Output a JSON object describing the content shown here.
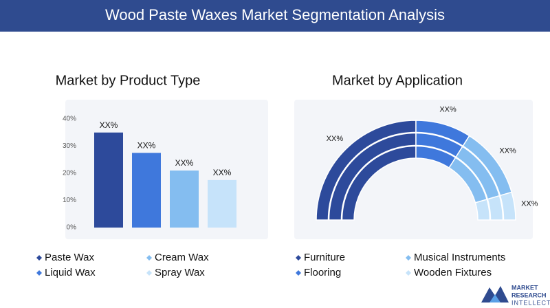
{
  "page_title": "Wood Paste Waxes Market Segmentation Analysis",
  "logo": [
    "MARKET",
    "RESEARCH",
    "INTELLECT"
  ],
  "chart_data": [
    {
      "type": "bar",
      "title": "Market by Product Type",
      "categories": [
        "Paste Wax",
        "Liquid Wax",
        "Cream Wax",
        "Spray Wax"
      ],
      "values": [
        35,
        27.5,
        21,
        17.5
      ],
      "value_labels": [
        "XX%",
        "XX%",
        "XX%",
        "XX%"
      ],
      "colors": [
        "#2d4a9b",
        "#3f78dc",
        "#84bdf0",
        "#c6e3fa"
      ],
      "ylim": [
        0,
        40
      ],
      "yticks": [
        {
          "value": 0,
          "label": "0%"
        },
        {
          "value": 10,
          "label": "10%"
        },
        {
          "value": 20,
          "label": "20%"
        },
        {
          "value": 30,
          "label": "30%"
        },
        {
          "value": 40,
          "label": "40%"
        }
      ],
      "grid": false
    },
    {
      "type": "semi-donut",
      "title": "Market by Application",
      "categories": [
        "Furniture",
        "Flooring",
        "Musical Instruments",
        "Wooden Fixtures"
      ],
      "values": [
        50,
        18,
        23,
        9
      ],
      "value_labels": [
        "XX%",
        "XX%",
        "XX%",
        "XX%"
      ],
      "colors": [
        "#2d4a9b",
        "#3f78dc",
        "#84bdf0",
        "#c6e3fa"
      ]
    }
  ]
}
